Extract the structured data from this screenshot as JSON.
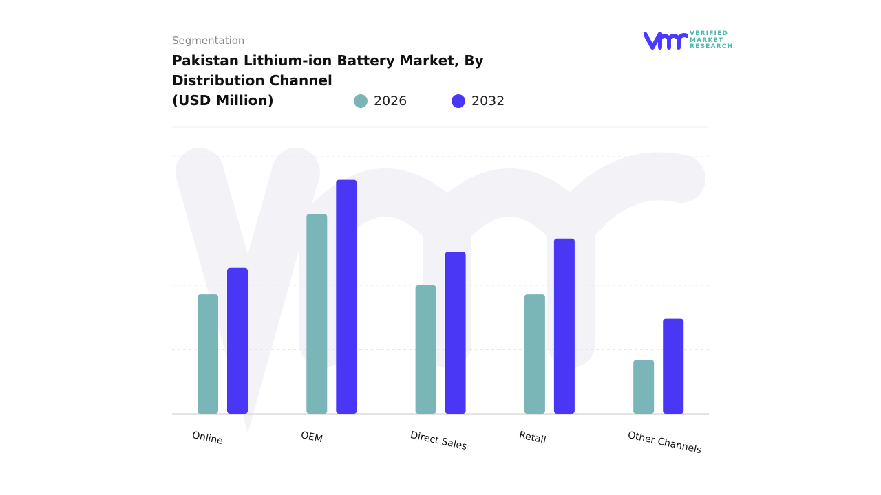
{
  "header": {
    "segment_label": "Segmentation",
    "title": "Pakistan Lithium-ion Battery Market, By Distribution Channel\n(USD Million)"
  },
  "logo": {
    "text_lines": [
      "VERIFIED",
      "MARKET",
      "RESEARCH"
    ],
    "color": "#4a3aff",
    "text_color": "#4bb8b0"
  },
  "chart_data": {
    "type": "bar",
    "title": "Pakistan Lithium-ion Battery Market, By Distribution Channel (USD Million)",
    "categories": [
      "Online",
      "OEM",
      "Direct Sales",
      "Retail",
      "Other Channels"
    ],
    "series": [
      {
        "name": "2026",
        "color": "#7ab5b8",
        "values": [
          1.86,
          3.11,
          2.0,
          1.86,
          0.84
        ]
      },
      {
        "name": "2032",
        "color": "#4a36f5",
        "values": [
          2.27,
          3.64,
          2.52,
          2.73,
          1.48
        ]
      }
    ],
    "ylim": [
      0,
      4
    ],
    "grid": true,
    "legend_position": "top",
    "xlabel": "",
    "ylabel": ""
  }
}
